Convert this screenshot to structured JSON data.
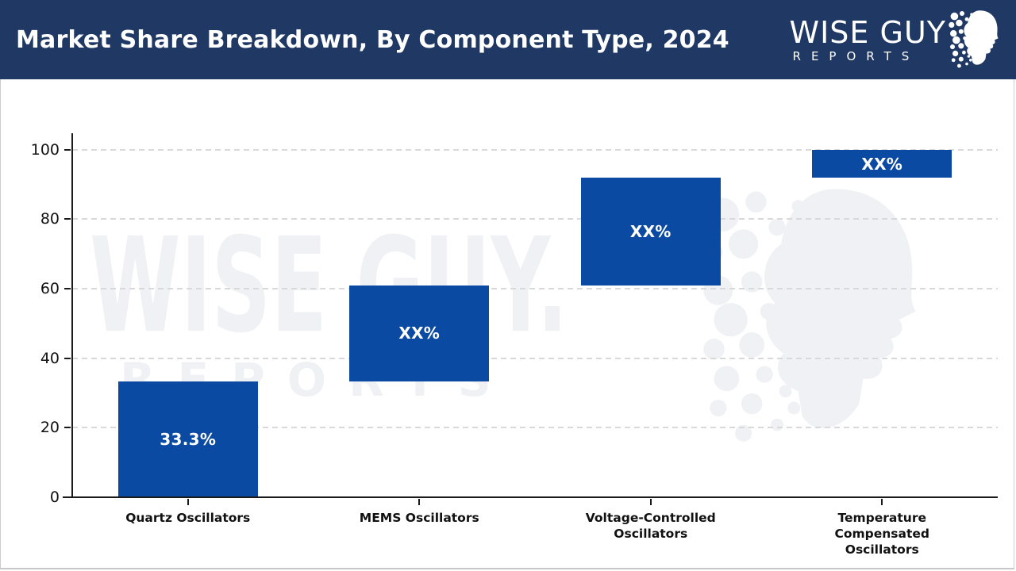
{
  "header": {
    "title": "Market Share Breakdown, By Component Type, 2024",
    "logo": {
      "line1": "WISE GUY",
      "line2": "REPORTS"
    }
  },
  "watermark": {
    "line1": "WISE GUY.",
    "line2": "REPORTS"
  },
  "chart_data": {
    "type": "bar",
    "subtype": "waterfall",
    "title": "Market Share Breakdown, By Component Type, 2024",
    "categories": [
      "Quartz Oscillators",
      "MEMS Oscillators",
      "Voltage-Controlled\nOscillators",
      "Temperature\nCompensated\nOscillators"
    ],
    "bars": [
      {
        "category": "Quartz Oscillators",
        "start": 0,
        "end": 33.3,
        "label": "33.3%"
      },
      {
        "category": "MEMS Oscillators",
        "start": 33.3,
        "end": 61.0,
        "label": "XX%"
      },
      {
        "category": "Voltage-Controlled Oscillators",
        "start": 61.0,
        "end": 91.8,
        "label": "XX%"
      },
      {
        "category": "Temperature Compensated Oscillators",
        "start": 91.8,
        "end": 100.0,
        "label": "XX%"
      }
    ],
    "yticks": [
      0,
      20,
      40,
      60,
      80,
      100
    ],
    "ylim": [
      0,
      104
    ],
    "grid": "horizontal-dashed",
    "legend": "none",
    "xlabel": "",
    "ylabel": ""
  },
  "colors": {
    "header_bg": "#1f3864",
    "bar_fill": "#0b4aa2",
    "bar_label": "#ffffff",
    "axis": "#1a1a1a",
    "gridline": "#d9d9d9",
    "watermark": "#f0f1f4",
    "border": "#cccccc"
  }
}
